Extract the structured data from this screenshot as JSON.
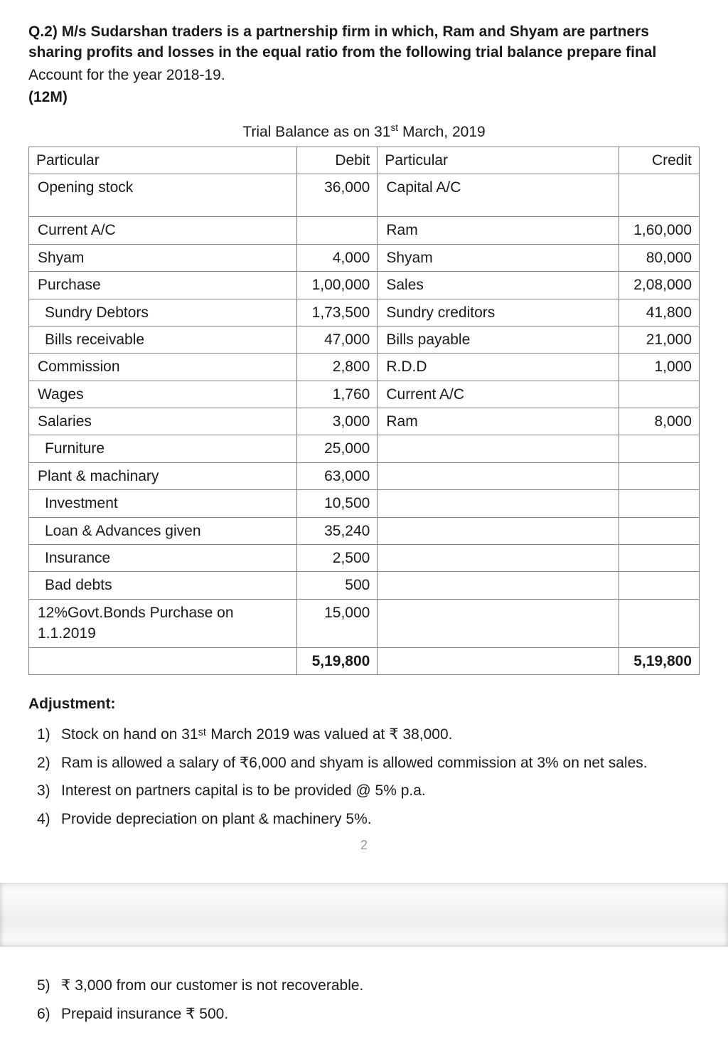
{
  "question": {
    "prefix": "Q.2) ",
    "body": "M/s Sudarshan traders is a partnership firm in which, Ram and Shyam are partners sharing profits and losses in the equal ratio from the following trial balance prepare final",
    "line2": "Account for the year 2018-19.",
    "marks": "(12M)"
  },
  "tableTitle": "Trial Balance as on 31ˢᵗ March, 2019",
  "headers": {
    "particularL": "Particular",
    "debit": "Debit",
    "particularR": "Particular",
    "credit": "Credit"
  },
  "rows": [
    {
      "pl": "Opening stock",
      "d": "36,000",
      "pr": "Capital A/C",
      "c": "",
      "tallL": true
    },
    {
      "pl": "Current A/C",
      "d": "",
      "pr": "Ram",
      "c": "1,60,000"
    },
    {
      "pl": "Shyam",
      "d": "4,000",
      "pr": "Shyam",
      "c": "80,000"
    },
    {
      "pl": "Purchase",
      "d": "1,00,000",
      "pr": "Sales",
      "c": "2,08,000"
    },
    {
      "pl": "Sundry Debtors",
      "d": "1,73,500",
      "pr": "Sundry creditors",
      "c": "41,800",
      "indentL": true
    },
    {
      "pl": "Bills receivable",
      "d": "47,000",
      "pr": "Bills payable",
      "c": "21,000",
      "indentL": true
    },
    {
      "pl": "Commission",
      "d": "2,800",
      "pr": "R.D.D",
      "c": "1,000"
    },
    {
      "pl": "Wages",
      "d": "1,760",
      "pr": "Current A/C",
      "c": ""
    },
    {
      "pl": "Salaries",
      "d": "3,000",
      "pr": "Ram",
      "c": "8,000"
    },
    {
      "pl": "Furniture",
      "d": "25,000",
      "pr": "",
      "c": "",
      "indentL": true
    },
    {
      "pl": "Plant & machinary",
      "d": "63,000",
      "pr": "",
      "c": ""
    },
    {
      "pl": "Investment",
      "d": "10,500",
      "pr": "",
      "c": "",
      "indentL": true
    },
    {
      "pl": "Loan & Advances given",
      "d": "35,240",
      "pr": "",
      "c": "",
      "indentL": true
    },
    {
      "pl": "Insurance",
      "d": "2,500",
      "pr": "",
      "c": "",
      "indentL": true
    },
    {
      "pl": "Bad debts",
      "d": "500",
      "pr": "",
      "c": "",
      "indentL": true
    },
    {
      "pl": "12%Govt.Bonds Purchase on 1.1.2019",
      "d": "15,000",
      "pr": "",
      "c": "",
      "tallL": true
    }
  ],
  "totals": {
    "debit": "5,19,800",
    "credit": "5,19,800"
  },
  "adjustmentTitle": "Adjustment:",
  "adjustments": [
    "Stock on hand on 31ˢᵗ March 2019 was valued at ₹ 38,000.",
    "Ram is allowed a salary of ₹6,000 and shyam is allowed commission at 3% on net sales.",
    "Interest on partners capital is to be provided @ 5% p.a.",
    "Provide depreciation on plant & machinery 5%."
  ],
  "pageNum": "2",
  "adjustmentsLower": [
    "₹ 3,000 from our customer is not recoverable.",
    "Prepaid insurance ₹ 500."
  ]
}
